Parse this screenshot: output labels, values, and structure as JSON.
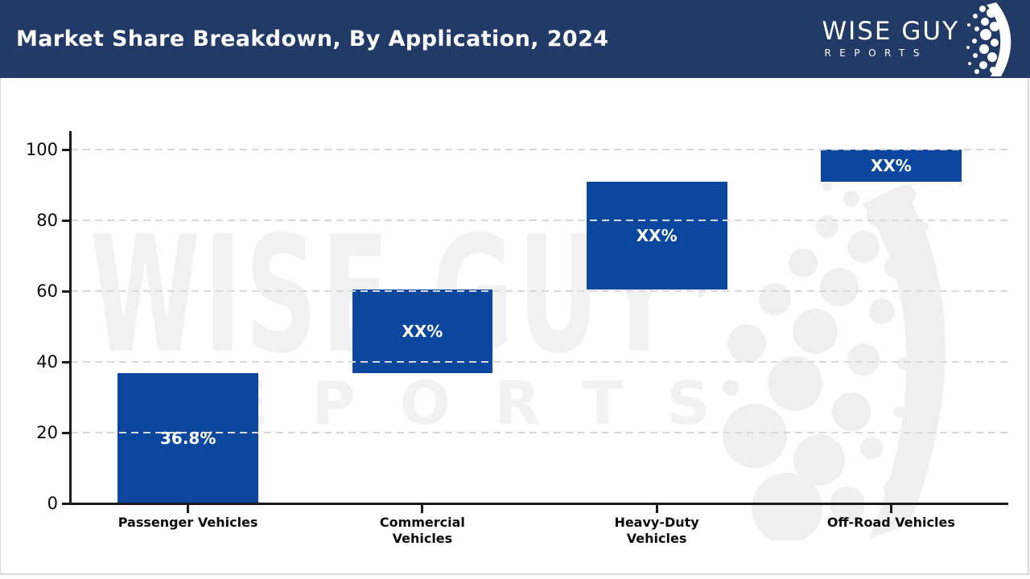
{
  "header": {
    "title": "Market Share Breakdown, By Application, 2024",
    "logo_line1": "WISE GUY",
    "logo_line2": "REPORTS"
  },
  "watermark": {
    "line1": "WISE GUY",
    "line2": "REPORTS"
  },
  "colors": {
    "header_bg": "#223A67",
    "bar": "#0B479F",
    "grid": "#d9d9d9",
    "axis": "#1a1a1a",
    "watermark": "#f1f1f1",
    "bar_label": "#ffffff"
  },
  "chart_data": {
    "type": "bar",
    "subtype": "waterfall",
    "title": "Market Share Breakdown, By Application, 2024",
    "categories": [
      "Passenger Vehicles",
      "Commercial\nVehicles",
      "Heavy-Duty\nVehicles",
      "Off-Road Vehicles"
    ],
    "segments": [
      {
        "start": 0,
        "end": 36.8,
        "label": "36.8%"
      },
      {
        "start": 36.8,
        "end": 60.5,
        "label": "XX%"
      },
      {
        "start": 60.5,
        "end": 91.0,
        "label": "XX%"
      },
      {
        "start": 91.0,
        "end": 100.0,
        "label": "XX%"
      }
    ],
    "ylim": [
      0,
      100
    ],
    "yticks": [
      0,
      20,
      40,
      60,
      80,
      100
    ],
    "grid": "horizontal-dashed",
    "legend": "none",
    "bar_color": "#0B479F",
    "label_color": "#ffffff"
  }
}
